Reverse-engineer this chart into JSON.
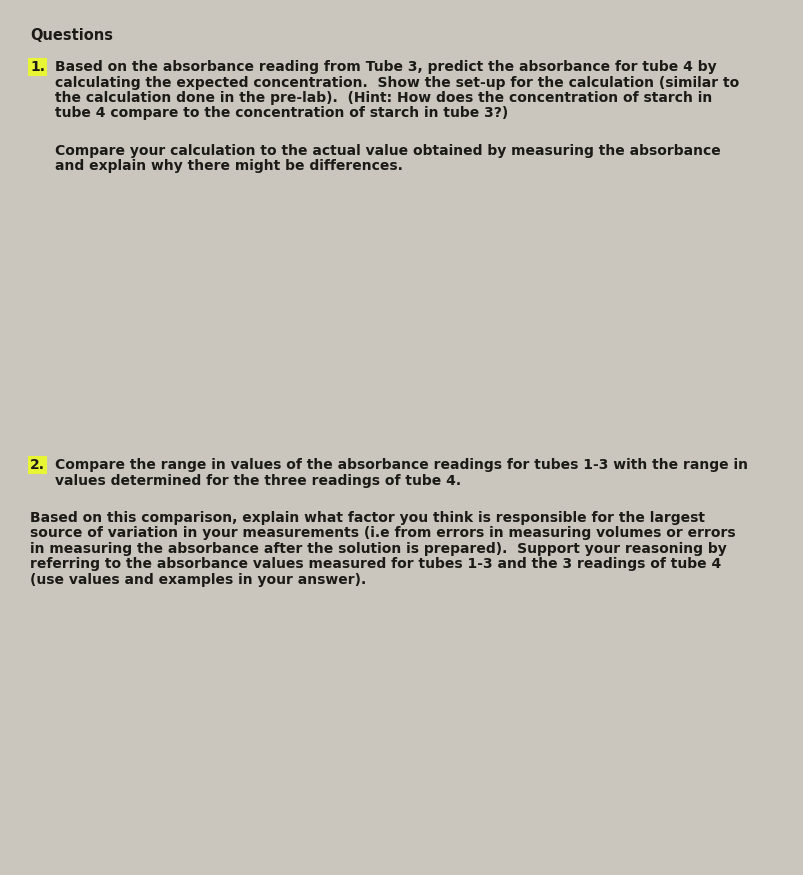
{
  "bg_color": "#cac6be",
  "text_color": "#1c1a17",
  "title": "Questions",
  "title_fontsize": 10.5,
  "font_size": 10.0,
  "q1_number": "1.",
  "q2_number": "2.",
  "highlight_color": "#e8f535",
  "q1_lines": [
    "Based on the absorbance reading from Tube 3, predict the absorbance for tube 4 by",
    "calculating the expected concentration.  Show the set-up for the calculation (similar to",
    "the calculation done in the pre-lab).  (Hint: How does the concentration of starch in",
    "tube 4 compare to the concentration of starch in tube 3?)"
  ],
  "q1_para2_lines": [
    "Compare your calculation to the actual value obtained by measuring the absorbance",
    "and explain why there might be differences."
  ],
  "q2_lines": [
    "Compare the range in values of the absorbance readings for tubes 1-3 with the range in",
    "values determined for the three readings of tube 4."
  ],
  "q2_para2_lines": [
    "Based on this comparison, explain what factor you think is responsible for the largest",
    "source of variation in your measurements (i.e from errors in measuring volumes or errors",
    "in measuring the absorbance after the solution is prepared).  Support your reasoning by",
    "referring to the absorbance values measured for tubes 1-3 and the 3 readings of tube 4",
    "(use values and examples in your answer)."
  ]
}
